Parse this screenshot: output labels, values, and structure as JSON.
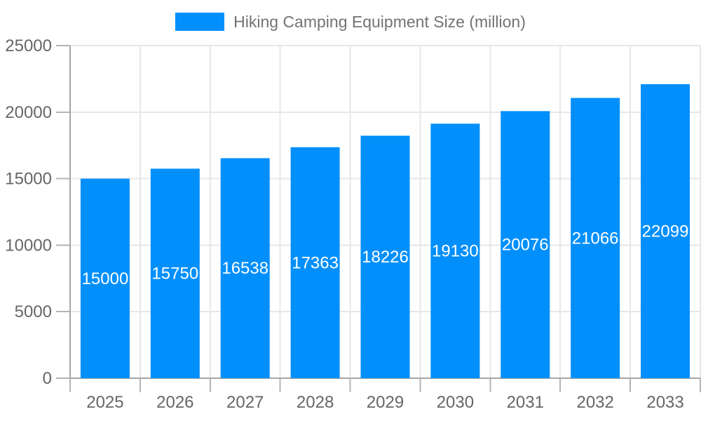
{
  "legend": {
    "label": "Hiking Camping Equipment Size (million)"
  },
  "colors": {
    "bar": "#008FFB",
    "legend_label": "#737373",
    "axis_label": "#666666",
    "value_label": "#ffffff",
    "gridline": "#e7e7e7",
    "axis_line": "#a6a6a6",
    "tick": "#b5b5b5",
    "background": "#ffffff"
  },
  "chart_data": {
    "type": "bar",
    "title": "Hiking Camping Equipment Size (million)",
    "categories": [
      "2025",
      "2026",
      "2027",
      "2028",
      "2029",
      "2030",
      "2031",
      "2032",
      "2033"
    ],
    "values": [
      15000,
      15750,
      16538,
      17363,
      18226,
      19130,
      20076,
      21066,
      22099
    ],
    "series": [
      {
        "name": "Hiking Camping Equipment Size (million)",
        "values": [
          15000,
          15750,
          16538,
          17363,
          18226,
          19130,
          20076,
          21066,
          22099
        ]
      }
    ],
    "xlabel": "",
    "ylabel": "",
    "ylim": [
      0,
      25000
    ],
    "yticks": [
      0,
      5000,
      10000,
      15000,
      20000,
      25000
    ],
    "grid": true,
    "legend_position": "top",
    "value_label_style": "white, centered inside bar"
  }
}
